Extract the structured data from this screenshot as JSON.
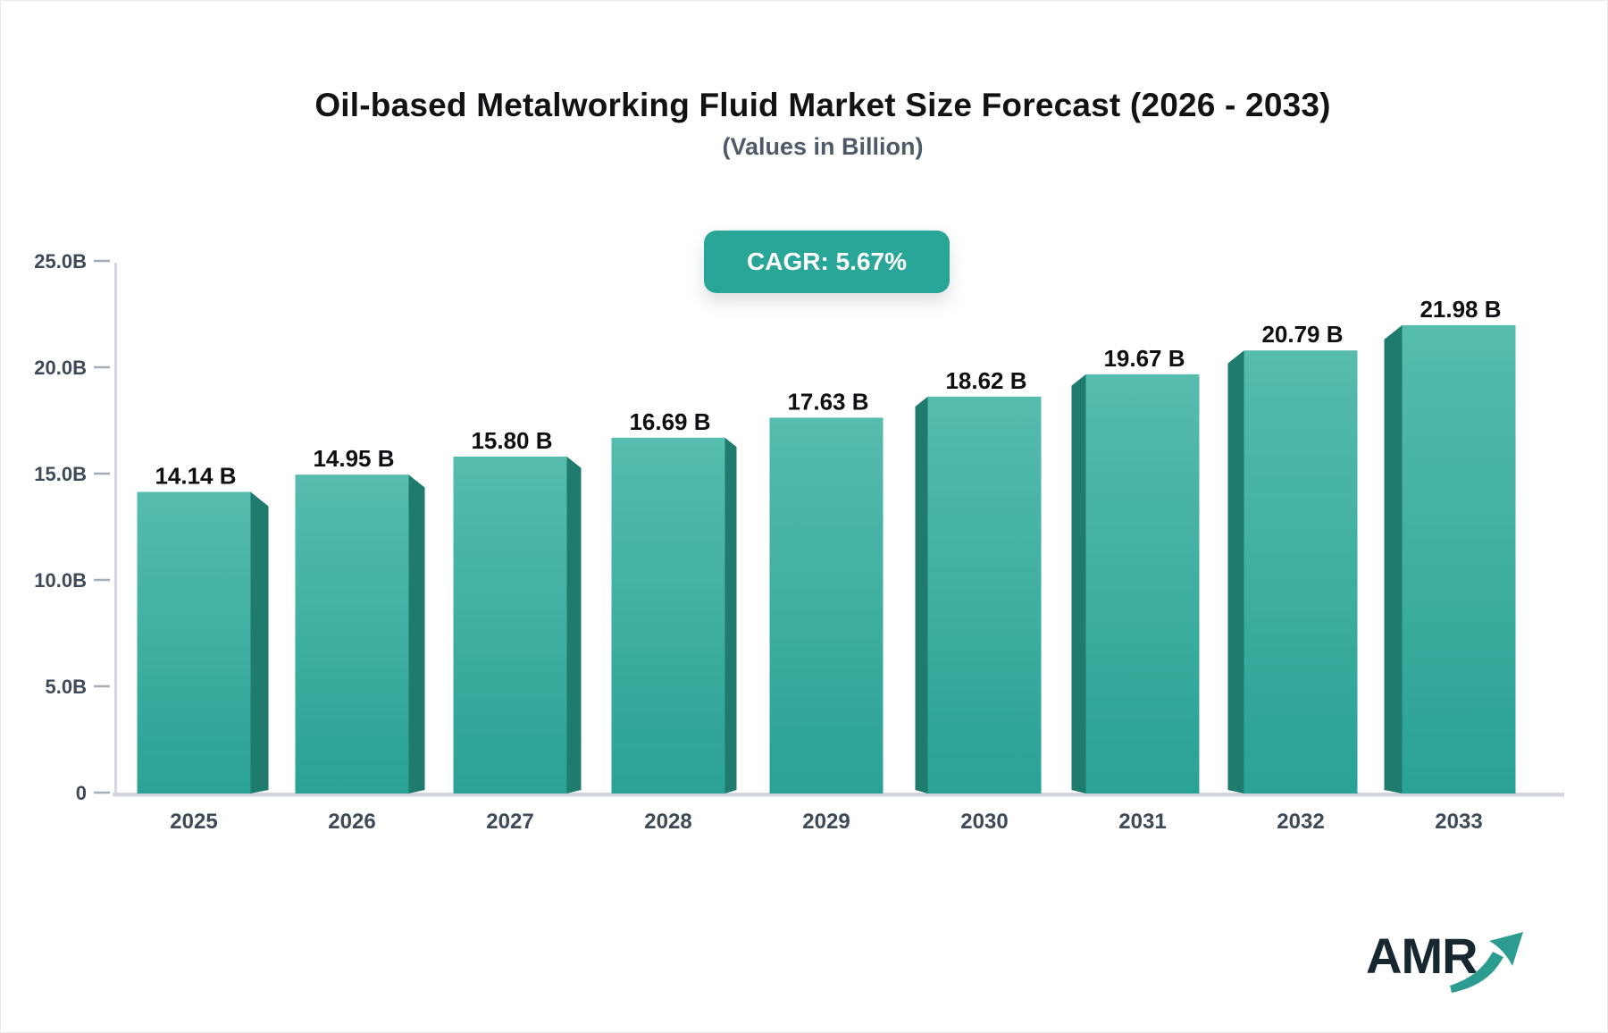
{
  "header": {
    "title": "Oil-based Metalworking Fluid Market Size Forecast (2026 - 2033)",
    "subtitle": "(Values in Billion)",
    "cagr_label": "CAGR: 5.67%"
  },
  "chart_data": {
    "type": "bar",
    "title": "Oil-based Metalworking Fluid Market Size Forecast (2026 - 2033)",
    "subtitle": "(Values in Billion)",
    "cagr": "5.67%",
    "categories": [
      "2025",
      "2026",
      "2027",
      "2028",
      "2029",
      "2030",
      "2031",
      "2032",
      "2033"
    ],
    "values": [
      14.14,
      14.95,
      15.8,
      16.69,
      17.63,
      18.62,
      19.67,
      20.79,
      21.98
    ],
    "value_labels": [
      "14.14 B",
      "14.95 B",
      "15.80 B",
      "16.69 B",
      "17.63 B",
      "18.62 B",
      "19.67 B",
      "20.79 B",
      "21.98 B"
    ],
    "unit": "Billion",
    "xlabel": "",
    "ylabel": "",
    "ylim": [
      0,
      25
    ],
    "yticks": [
      0,
      5,
      10,
      15,
      20,
      25
    ],
    "ytick_labels": [
      "0",
      "5.0B",
      "10.0B",
      "15.0B",
      "20.0B",
      "25.0B"
    ],
    "grid": false,
    "legend": "none",
    "bar_style": "3d-perspective-center"
  },
  "colors": {
    "background": "#ffffff",
    "title": "#101214",
    "subtitle": "#4e5a66",
    "badge_bg": "#2aa699",
    "badge_text": "#ffffff",
    "bar_face_top": "#56bcae",
    "bar_face_bottom": "#29a294",
    "bar_side": "#1e7b6d",
    "axis_line": "#d3d6dc",
    "tick_dash": "#a4adb8",
    "axis_text": "#3e4a57",
    "value_text": "#0d0f12",
    "logo_text": "#16272f",
    "logo_arrow": "#2d9c90"
  },
  "logo": {
    "text": "AMR",
    "icon": "trend-up-arrow-icon"
  }
}
